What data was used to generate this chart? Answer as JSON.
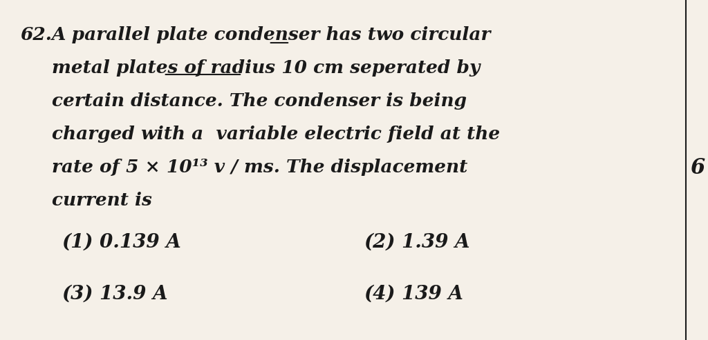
{
  "background_color": "#f5f0e8",
  "question_number": "62.",
  "question_text_lines": [
    "A parallel plate condenser has two circular",
    "metal plates of radius 10 cm seperated by",
    "certain distance. The condenser is being",
    "charged with a  variable electric field at the",
    "rate of 5 × 10¹³ v / ms. The displacement",
    "current is"
  ],
  "underline_word_two": "two",
  "underline_word_radius": "radius 10cm",
  "options": [
    {
      "label": "(1)",
      "value": "0.139 A"
    },
    {
      "label": "(2)",
      "value": "1.39 A"
    },
    {
      "label": "(3)",
      "value": "13.9 A"
    },
    {
      "label": "(4)",
      "value": "139 A"
    }
  ],
  "side_number": "6",
  "text_color": "#1a1a1a",
  "font_size_question": 19,
  "font_size_options": 20,
  "font_size_number": 19
}
